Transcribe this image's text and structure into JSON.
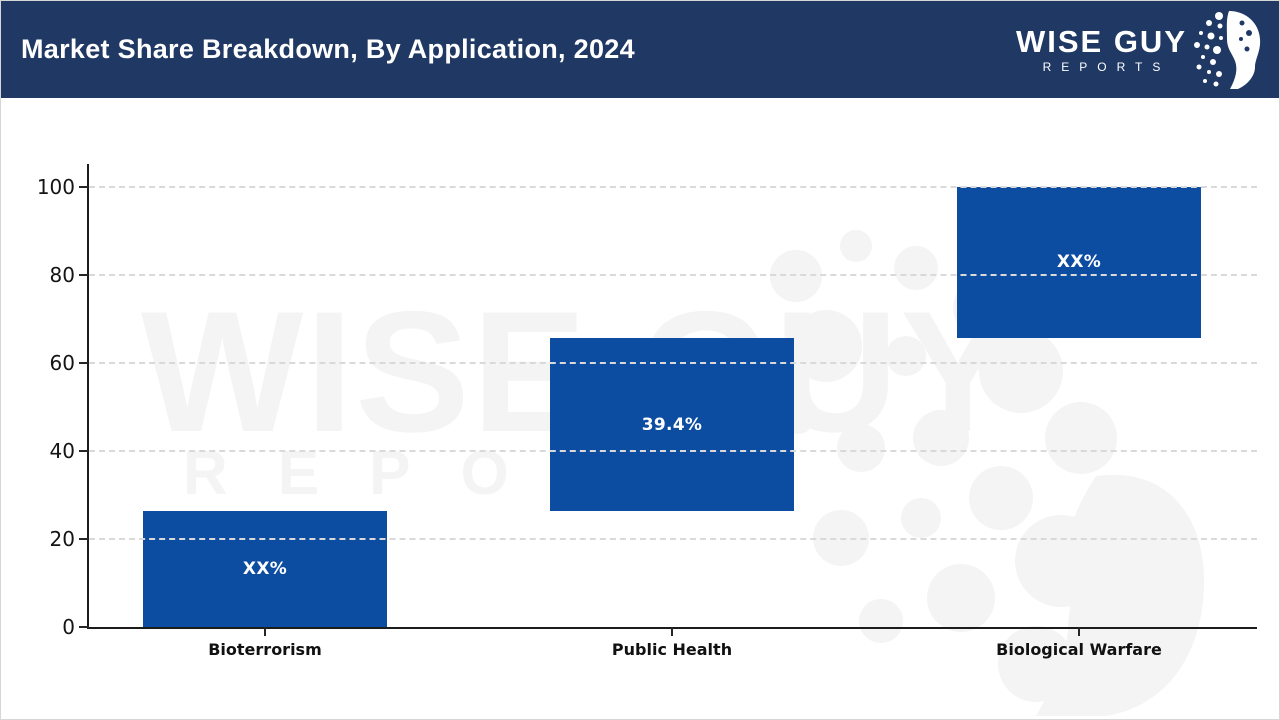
{
  "header": {
    "title": "Market Share Breakdown, By Application, 2024",
    "logo": {
      "line1": "WISE GUY",
      "line2": "REPORTS"
    }
  },
  "watermark": {
    "line1": "WISE GUY",
    "line2": "REPORTS"
  },
  "colors": {
    "header_bg": "#1f3864",
    "bar": "#0d4da1",
    "grid": "#d9d9d9",
    "axis": "#1c1c1c",
    "bar_label": "#ffffff",
    "watermark": "#f4f4f4"
  },
  "chart_data": {
    "type": "bar",
    "subtype": "waterfall-floating-bars",
    "title": "Market Share Breakdown, By Application, 2024",
    "categories": [
      "Bioterrorism",
      "Public Health",
      "Biological Warfare"
    ],
    "segments": [
      {
        "category": "Bioterrorism",
        "start": 0,
        "end": 26.3,
        "label": "XX%"
      },
      {
        "category": "Public Health",
        "start": 26.3,
        "end": 65.7,
        "label": "39.4%"
      },
      {
        "category": "Biological Warfare",
        "start": 65.7,
        "end": 100,
        "label": "XX%"
      }
    ],
    "yticks": [
      0,
      20,
      40,
      60,
      80,
      100
    ],
    "ylim": [
      0,
      105
    ],
    "xlabel": "",
    "ylabel": "",
    "grid": "dashed-horizontal",
    "legend": "none"
  }
}
